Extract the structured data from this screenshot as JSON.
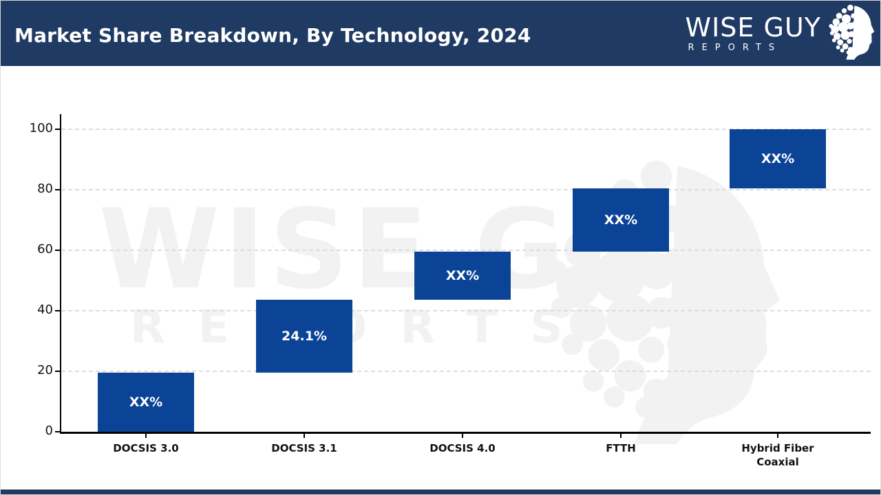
{
  "header": {
    "title": "Market Share Breakdown, By Technology, 2024",
    "brand_line1": "WISE GUY",
    "brand_line2": "REPORTS"
  },
  "watermark": {
    "line1": "WISE GUY",
    "line2": "REPORTS"
  },
  "chart_data": {
    "type": "bar",
    "subtype": "waterfall",
    "title": "Market Share Breakdown, By Technology, 2024",
    "xlabel": "",
    "ylabel": "",
    "ylim": [
      0,
      105
    ],
    "yticks": [
      0,
      20,
      40,
      60,
      80,
      100
    ],
    "grid": "horizontal dashed",
    "legend": "none",
    "categories": [
      "DOCSIS 3.0",
      "DOCSIS 3.1",
      "DOCSIS 4.0",
      "FTTH",
      "Hybrid Fiber Coaxial"
    ],
    "segments": [
      {
        "category": "DOCSIS 3.0",
        "start": 0,
        "end": 19.5,
        "value": 19.5,
        "label": "XX%"
      },
      {
        "category": "DOCSIS 3.1",
        "start": 19.5,
        "end": 43.6,
        "value": 24.1,
        "label": "24.1%"
      },
      {
        "category": "DOCSIS 4.0",
        "start": 43.6,
        "end": 59.5,
        "value": 15.9,
        "label": "XX%"
      },
      {
        "category": "FTTH",
        "start": 59.5,
        "end": 80.5,
        "value": 21.0,
        "label": "XX%"
      },
      {
        "category": "Hybrid Fiber Coaxial",
        "start": 80.5,
        "end": 100,
        "value": 19.5,
        "label": "XX%"
      }
    ],
    "bar_color": "#0b4396",
    "bar_label_color": "#ffffff"
  },
  "colors": {
    "header_bg": "#1f3a63",
    "footer_bg": "#1f3a63",
    "bar": "#0b4396",
    "axis": "#000000",
    "grid": "#dcdcdc",
    "watermark": "#f2f2f2"
  }
}
